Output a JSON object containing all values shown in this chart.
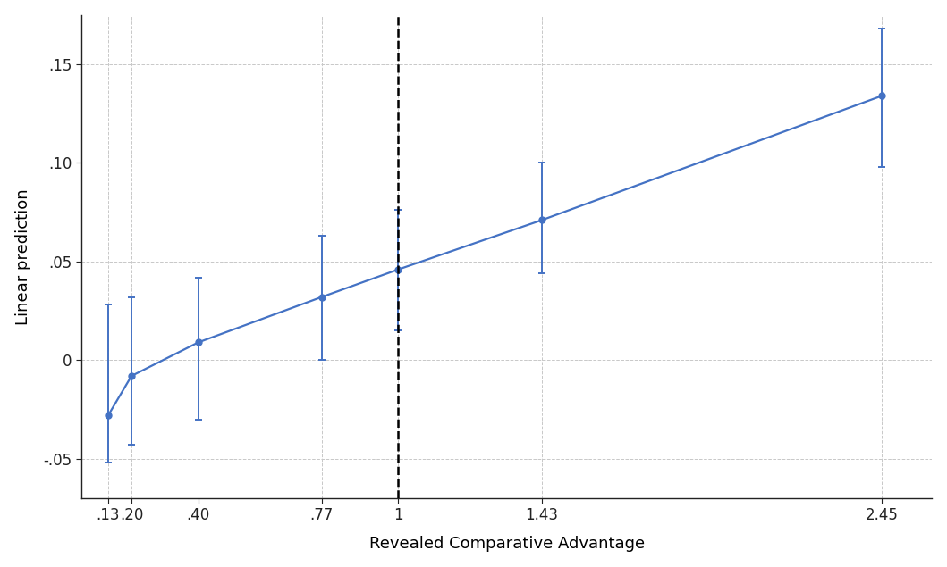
{
  "x_points": [
    0.13,
    0.2,
    0.4,
    0.77,
    1.0,
    1.43,
    2.45
  ],
  "y_points": [
    -0.028,
    -0.008,
    0.009,
    0.032,
    0.046,
    0.071,
    0.134
  ],
  "y_lower": [
    -0.052,
    -0.043,
    -0.03,
    0.0,
    0.015,
    0.044,
    0.098
  ],
  "y_upper": [
    0.028,
    0.032,
    0.042,
    0.063,
    0.076,
    0.1,
    0.168
  ],
  "vline_x": 1.0,
  "xlabel": "Revealed Comparative Advantage",
  "ylabel": "Linear prediction",
  "xlim": [
    0.05,
    2.6
  ],
  "ylim": [
    -0.07,
    0.175
  ],
  "yticks": [
    -0.05,
    0.0,
    0.05,
    0.1,
    0.15
  ],
  "ytick_labels": [
    "-.05",
    "0",
    ".05",
    ".10",
    ".15"
  ],
  "xtick_positions": [
    0.13,
    0.2,
    0.4,
    0.77,
    1.0,
    1.43,
    2.45
  ],
  "xtick_labels": [
    ".13",
    ".20",
    ".40",
    ".77",
    "1",
    "1.43",
    "2.45"
  ],
  "line_color": "#4472C4",
  "point_color": "#4472C4",
  "error_color": "#4472C4",
  "grid_color": "#c8c8c8",
  "background_color": "#ffffff",
  "vline_color": "#000000",
  "capsize": 3,
  "linewidth": 1.6,
  "markersize": 5,
  "xlabel_fontsize": 13,
  "ylabel_fontsize": 13,
  "tick_fontsize": 12
}
